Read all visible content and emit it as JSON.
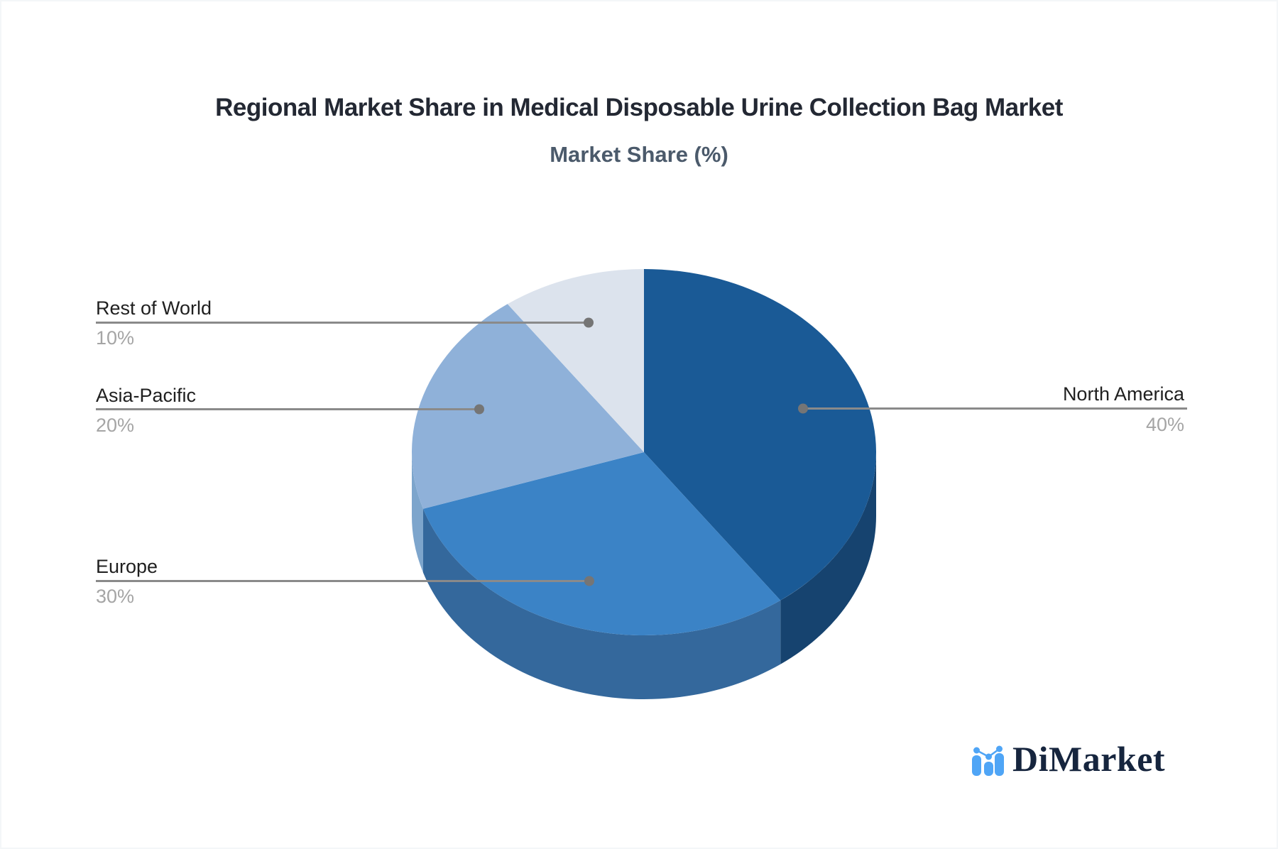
{
  "page": {
    "title": "Regional Market Share in Medical Disposable Urine Collection Bag Market",
    "subtitle": "Market Share (%)"
  },
  "chart_data": {
    "type": "pie",
    "style": "3d",
    "title": "Regional Market Share in Medical Disposable Urine Collection Bag Market",
    "subtitle": "Market Share (%)",
    "unit": "percent",
    "start_angle_deg": 90,
    "direction": "clockwise",
    "legend_position": "none",
    "labeling": "leader-lines",
    "slices": [
      {
        "label": "North America",
        "value": 40,
        "display": "40%",
        "color": "#1a5a96",
        "side_color": "#16436f"
      },
      {
        "label": "Europe",
        "value": 30,
        "display": "30%",
        "color": "#3b83c6",
        "side_color": "#34689c"
      },
      {
        "label": "Asia-Pacific",
        "value": 20,
        "display": "20%",
        "color": "#8fb1d9",
        "side_color": "#7da5cc"
      },
      {
        "label": "Rest of World",
        "value": 10,
        "display": "10%",
        "color": "#dce3ed",
        "side_color": "#c9d3e0"
      }
    ]
  },
  "branding": {
    "logo_text": "DiMarket",
    "logo_icon": "bar-line-chart-icon",
    "icon_color": "#4fa5f6",
    "text_color": "#16253e"
  },
  "style": {
    "background": "#ffffff",
    "title_color": "#232833",
    "subtitle_color": "#4b5a6b",
    "label_color": "#1f1f1f",
    "percent_color": "#a5a5a5",
    "leader_line_color": "#8a8a8a",
    "leader_dot_color": "#757575"
  }
}
